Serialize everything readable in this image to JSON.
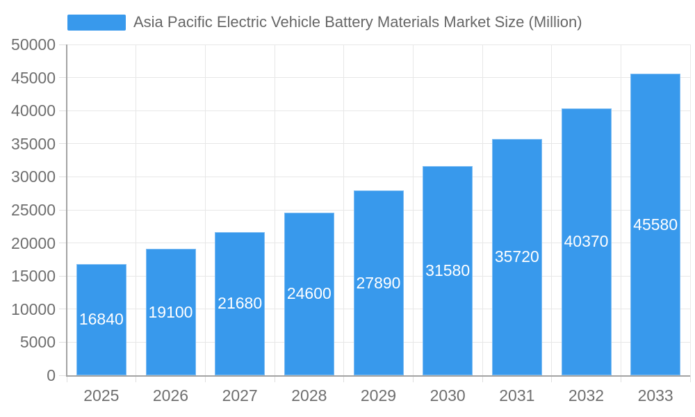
{
  "chart_data": {
    "type": "bar",
    "title": "Asia Pacific Electric Vehicle Battery Materials Market Size (Million)",
    "categories": [
      "2025",
      "2026",
      "2027",
      "2028",
      "2029",
      "2030",
      "2031",
      "2032",
      "2033"
    ],
    "values": [
      16840,
      19100,
      21680,
      24600,
      27890,
      31580,
      35720,
      40370,
      45580
    ],
    "xlabel": "",
    "ylabel": "",
    "ylim": [
      0,
      50000
    ],
    "ytick_step": 5000,
    "ytick_labels": [
      "0",
      "5000",
      "10000",
      "15000",
      "20000",
      "25000",
      "30000",
      "35000",
      "40000",
      "45000",
      "50000"
    ],
    "grid": "on",
    "legend_position": "top",
    "bar_color": "#3899EC",
    "value_label_color": "#ffffff",
    "tick_label_color": "#6e6e6e",
    "legend_text_color": "#666666",
    "grid_color": "#e7e7e7",
    "axis_color": "#a3a3a3"
  }
}
